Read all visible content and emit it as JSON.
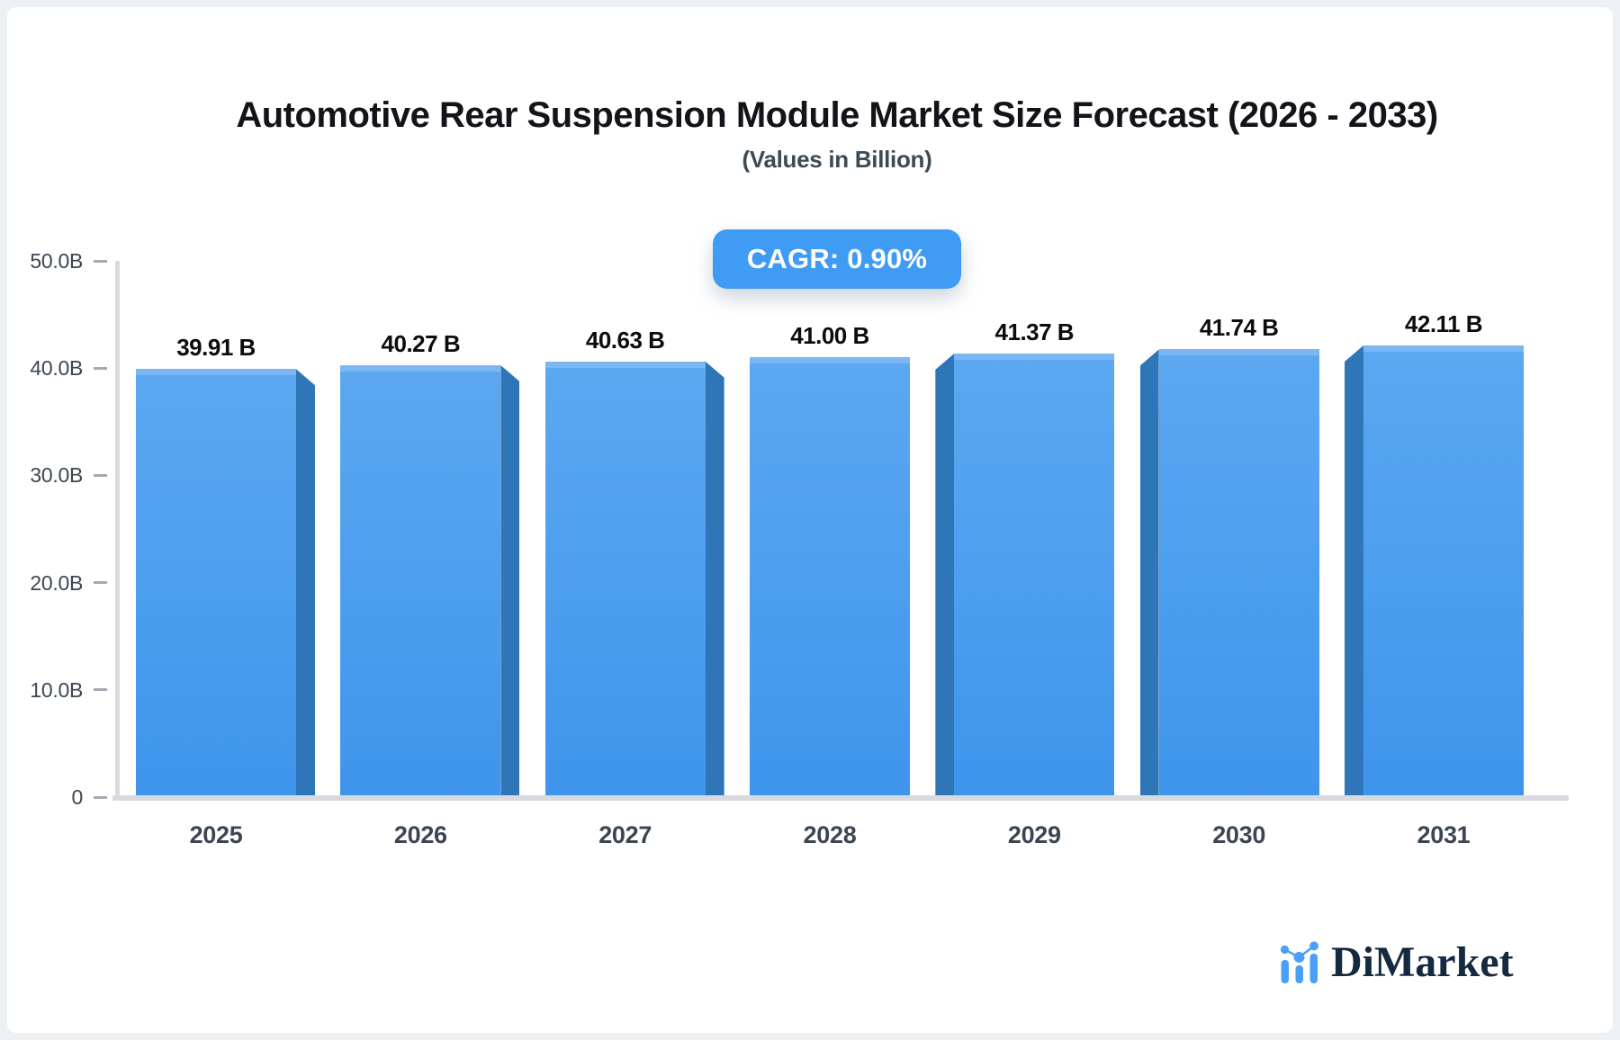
{
  "header": {
    "title": "Automotive Rear Suspension Module Market Size Forecast (2026 - 2033)",
    "subtitle": "(Values in Billion)"
  },
  "badge": {
    "label": "CAGR: 0.90%"
  },
  "brand": {
    "name": "DiMarket",
    "icon": "bar-chart-trend-icon"
  },
  "colors": {
    "frame": "#eef1f4",
    "card": "#ffffff",
    "title": "#121419",
    "subtitle": "#3e4a55",
    "accent": "#3f9bf3",
    "axis": "#d7dbe0",
    "tick": "#a3aab2",
    "axis-label": "#3c4653",
    "value": "#0b0c0e",
    "bar-top": "#5ca8f1",
    "bar-bottom": "#3e95ec",
    "bar-band": "#79b8f4",
    "bar-side": "#2e76b8",
    "brand-navy": "#152940",
    "brand-blue": "#4aa0f6"
  },
  "chart_data": {
    "type": "bar",
    "title": "Automotive Rear Suspension Module Market Size Forecast (2026 - 2033)",
    "subtitle": "(Values in Billion)",
    "cagr": "0.90%",
    "categories": [
      "2025",
      "2026",
      "2027",
      "2028",
      "2029",
      "2030",
      "2031"
    ],
    "values": [
      39.91,
      40.27,
      40.63,
      41.0,
      41.37,
      41.74,
      42.11
    ],
    "value_labels": [
      "39.91 B",
      "40.27 B",
      "40.63 B",
      "41.00 B",
      "41.37 B",
      "41.74 B",
      "42.11 B"
    ],
    "xlabel": "",
    "ylabel": "",
    "ylim": [
      0,
      50
    ],
    "y_tick_values": [
      50,
      40,
      30,
      20,
      10,
      0
    ],
    "y_tick_labels": [
      "50.0B",
      "40.0B",
      "30.0B",
      "20.0B",
      "10.0B",
      "0"
    ],
    "grid": false,
    "legend": false,
    "bar_style": "3d-beveled, light-blue gradient face with dark blue side; side on right for bars left of center, flat center bar, side on left for bars right of center"
  }
}
